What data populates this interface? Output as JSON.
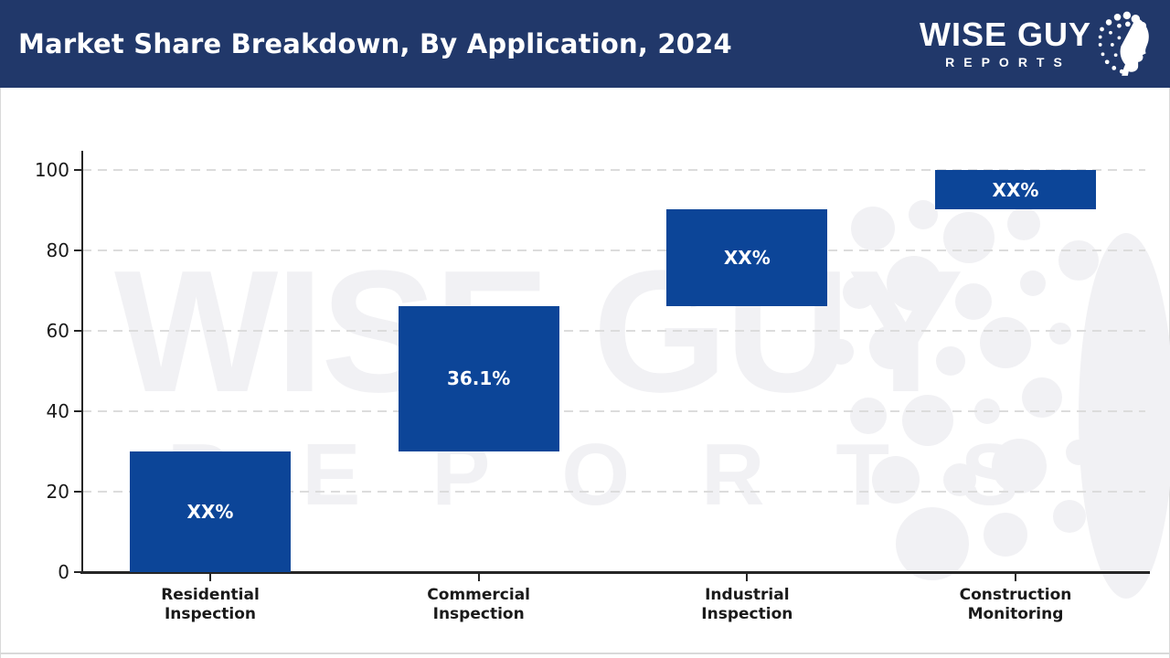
{
  "header": {
    "title": "Market Share Breakdown, By Application, 2024",
    "logo": {
      "line1": "WISE GUY",
      "line2": "REPORTS"
    }
  },
  "watermark": {
    "line1": "WISE GUY",
    "line2": "REPORTS"
  },
  "colors": {
    "header_bg": "#21386a",
    "bar": "#0c4598",
    "bar_label": "#ffffff",
    "axis": "#262626",
    "tick_text": "#1a1a1a",
    "grid": "#dcdcdc",
    "watermark": "#f1f1f4",
    "bottom_rule": "#d9d9d9"
  },
  "chart_data": {
    "type": "bar",
    "variant": "waterfall",
    "title": "Market Share Breakdown, By Application, 2024",
    "categories": [
      "Residential Inspection",
      "Commercial Inspection",
      "Industrial Inspection",
      "Construction Monitoring"
    ],
    "series": [
      {
        "name": "Market Share",
        "segments": [
          {
            "category": "Residential Inspection",
            "start": 0,
            "end": 30.1,
            "label": "XX%"
          },
          {
            "category": "Commercial Inspection",
            "start": 30.1,
            "end": 66.2,
            "label": "36.1%"
          },
          {
            "category": "Industrial Inspection",
            "start": 66.2,
            "end": 90.2,
            "label": "XX%"
          },
          {
            "category": "Construction Monitoring",
            "start": 90.2,
            "end": 100,
            "label": "XX%"
          }
        ]
      }
    ],
    "ylim": [
      0,
      100
    ],
    "yticks": [
      0,
      20,
      40,
      60,
      80,
      100
    ],
    "xlabel": "",
    "ylabel": "",
    "grid": "horizontal-dashed",
    "legend": "none"
  }
}
